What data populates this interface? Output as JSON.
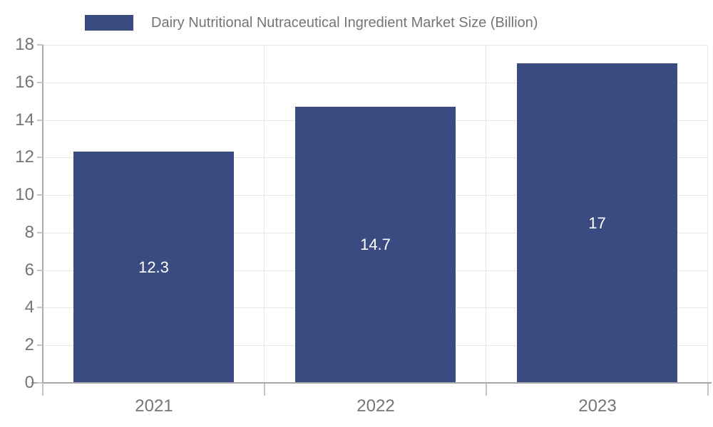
{
  "chart_data": {
    "type": "bar",
    "legend": "Dairy Nutritional Nutraceutical Ingredient Market Size (Billion)",
    "legend_position": "top",
    "categories": [
      "2021",
      "2022",
      "2023"
    ],
    "series": [
      {
        "name": "Dairy Nutritional Nutraceutical Ingredient Market Size (Billion)",
        "values": [
          12.3,
          14.7,
          17
        ],
        "value_labels": [
          "12.3",
          "14.7",
          "17"
        ]
      }
    ],
    "xlabel": "",
    "ylabel": "",
    "ylim": [
      0,
      18
    ],
    "ytick_step": 2,
    "ytick_labels": [
      "0",
      "2",
      "4",
      "6",
      "8",
      "10",
      "12",
      "14",
      "16",
      "18"
    ],
    "grid": true,
    "grid_vertical_at_category_boundaries": true,
    "value_label_position": "inside-center"
  },
  "colors": {
    "bar_fill": "#394b81",
    "value_label_text": "#ffffff",
    "legend_text": "#757575",
    "axis_label_text": "#757575",
    "gridline": "#e6e6e6",
    "axis_line": "#a8a8a8",
    "tick_mark": "#c4c4c4",
    "background": "#ffffff"
  }
}
